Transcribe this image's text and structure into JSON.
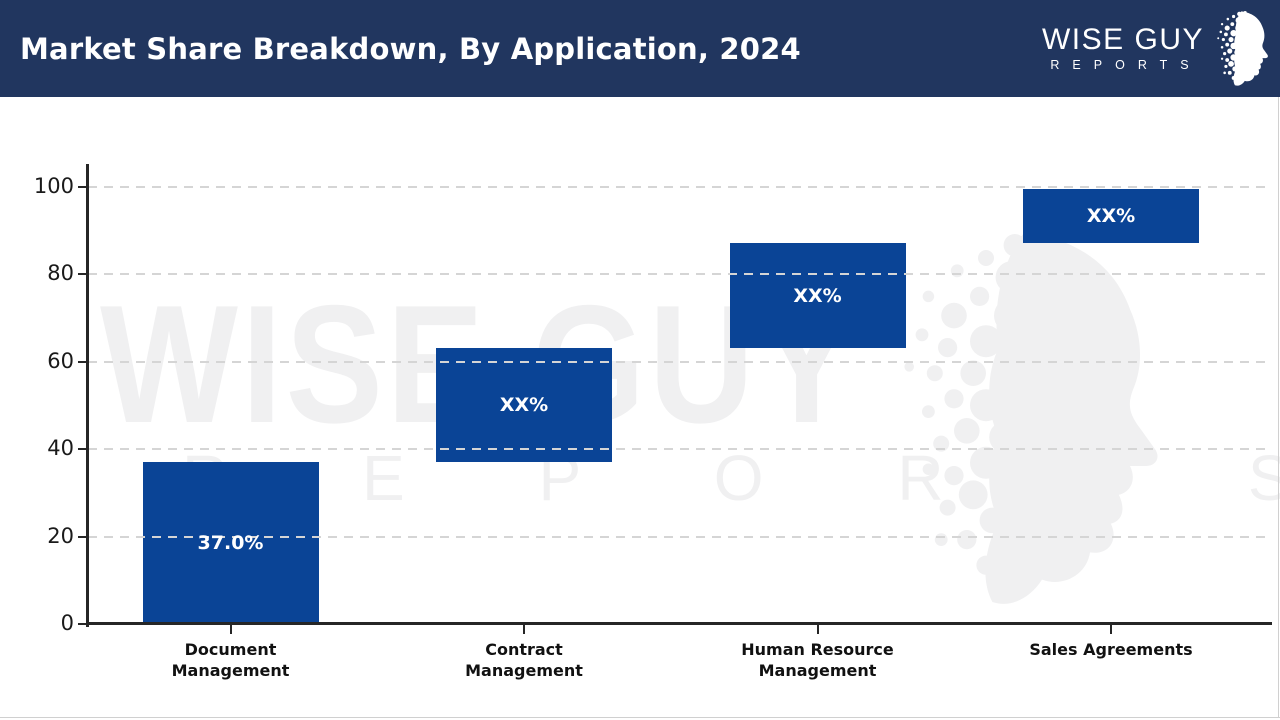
{
  "header": {
    "title": "Market Share Breakdown, By Application, 2024",
    "logo": {
      "line1": "WISE GUY",
      "line2": "REPORTS"
    }
  },
  "watermark": {
    "line1": "WISE GUY",
    "line2": "R E P O R T S"
  },
  "chart_data": {
    "type": "bar",
    "subtype": "floating-segment-waterfall",
    "title": "Market Share Breakdown, By Application, 2024",
    "categories": [
      "Document Management",
      "Contract Management",
      "Human Resource Management",
      "Sales Agreements"
    ],
    "category_lines": [
      [
        "Document",
        "Management"
      ],
      [
        "Contract",
        "Management"
      ],
      [
        "Human Resource",
        "Management"
      ],
      [
        "Sales Agreements"
      ]
    ],
    "segments": [
      {
        "category": "Document Management",
        "start": 0,
        "end": 37,
        "label": "37.0%"
      },
      {
        "category": "Contract Management",
        "start": 37,
        "end": 63,
        "label": "XX%"
      },
      {
        "category": "Human Resource Management",
        "start": 63,
        "end": 87,
        "label": "XX%"
      },
      {
        "category": "Sales Agreements",
        "start": 87,
        "end": 99.5,
        "label": "XX%"
      }
    ],
    "values_pct": [
      37.0,
      26.0,
      24.0,
      12.5
    ],
    "ylabel": "",
    "xlabel": "",
    "yticks": [
      0,
      20,
      40,
      60,
      80,
      100
    ],
    "ylim": [
      0,
      105
    ],
    "grid": "horizontal-dashed",
    "legend": "none",
    "colors": {
      "bar": "#0a4496",
      "bar_label": "#ffffff",
      "grid": "#d5d5d5",
      "axis": "#262626",
      "tick_label": "#1a1a1a",
      "header_bg": "#21365f",
      "watermark": "#f0f0f1"
    }
  }
}
